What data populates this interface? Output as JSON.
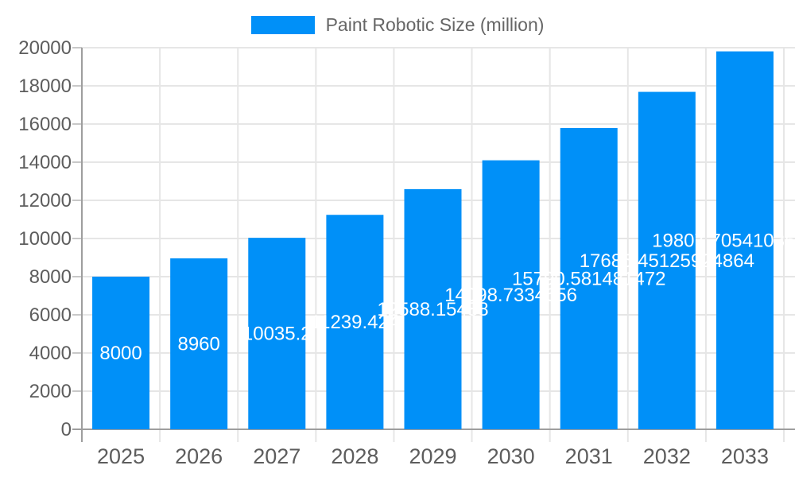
{
  "legend": {
    "label": "Paint Robotic Size (million)"
  },
  "chart_data": {
    "type": "bar",
    "title": "Paint Robotic Size (million)",
    "legend_position": "top-center",
    "grid": true,
    "categories": [
      "2025",
      "2026",
      "2027",
      "2028",
      "2029",
      "2030",
      "2031",
      "2032",
      "2033"
    ],
    "series": [
      {
        "name": "Paint Robotic Size (million)",
        "values": [
          8000,
          8960,
          10035.2,
          11239.424,
          12588.15488,
          14098.7334656,
          15790.581481472,
          17685.45125924864,
          19807.705410358478
        ],
        "labels": [
          "8000",
          "8960",
          "10035.2",
          "11239.424",
          "12588.15488",
          "14098.7334656",
          "15790.581481472",
          "17685.45125924864",
          "19807.705410358477"
        ]
      }
    ],
    "xlabel": "",
    "ylabel": "",
    "ylim": [
      0,
      20000
    ],
    "ytick_step": 2000,
    "yticks": [
      0,
      2000,
      4000,
      6000,
      8000,
      10000,
      12000,
      14000,
      16000,
      18000,
      20000
    ]
  },
  "colors": {
    "bar": "#0090F8",
    "grid": "#E6E6E6",
    "axis": "#9E9E9E",
    "tick_dash": "#C8C8C8",
    "axis_label_text": "#5D5D5D",
    "legend_text": "#666666",
    "annotation_text": "#FFFFFF",
    "background": "#FFFFFF"
  }
}
